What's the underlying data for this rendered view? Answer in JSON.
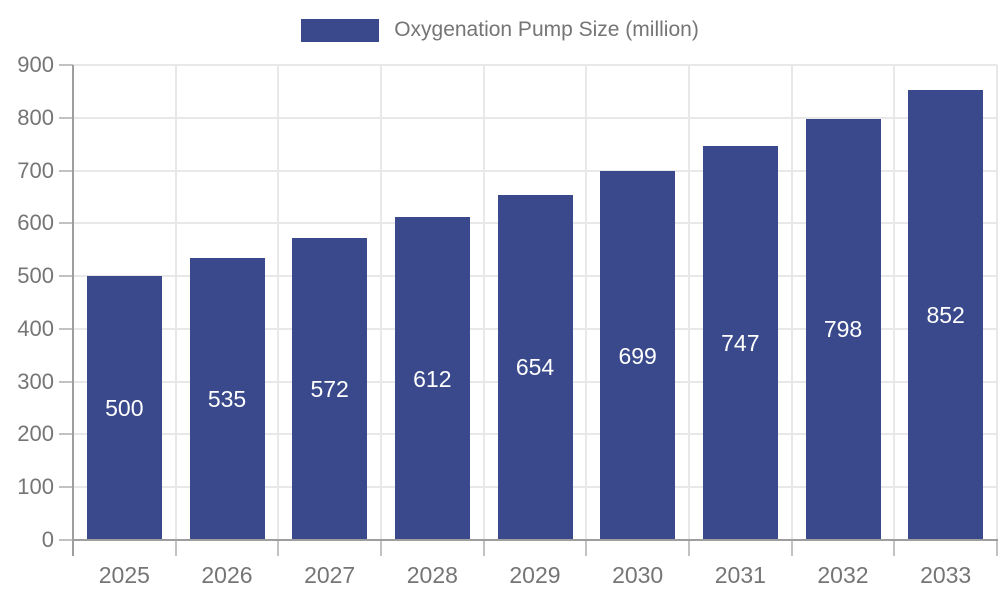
{
  "legend": {
    "label": "Oxygenation Pump Size (million)"
  },
  "chart_data": {
    "type": "bar",
    "title": "",
    "series_name": "Oxygenation Pump Size (million)",
    "categories": [
      "2025",
      "2026",
      "2027",
      "2028",
      "2029",
      "2030",
      "2031",
      "2032",
      "2033"
    ],
    "values": [
      500,
      535,
      572,
      612,
      654,
      699,
      747,
      798,
      852
    ],
    "xlabel": "",
    "ylabel": "",
    "ylim": [
      0,
      900
    ],
    "yticks": [
      0,
      100,
      200,
      300,
      400,
      500,
      600,
      700,
      800,
      900
    ],
    "grid": true,
    "legend_position": "top-center",
    "value_label_style": "inside-center-white"
  },
  "colors": {
    "bar": "#39498B",
    "axis": "#9E9E9E",
    "gridline": "#E8E8E8",
    "tick": "#C2C2C2",
    "tick_label": "#757575",
    "legend_label": "#757575",
    "value_label": "#FFFFFF",
    "background": "#FFFFFF"
  }
}
